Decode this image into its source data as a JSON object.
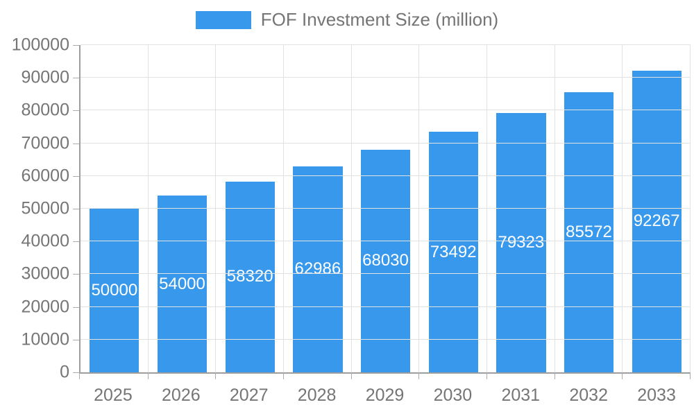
{
  "legend": {
    "label": "FOF Investment Size (million)"
  },
  "style": {
    "bar_color": "#3899EC",
    "grid_color": "#E2E2E2",
    "axis_color": "#9E9E9E",
    "tick_color": "#ABABAB",
    "axis_text_color": "#757575",
    "bar_label_color": "#FFFFFF"
  },
  "chart_data": {
    "type": "bar",
    "title": "",
    "categories": [
      "2025",
      "2026",
      "2027",
      "2028",
      "2029",
      "2030",
      "2031",
      "2032",
      "2033"
    ],
    "series": [
      {
        "name": "FOF Investment Size (million)",
        "values": [
          50000,
          54000,
          58320,
          62986,
          68030,
          73492,
          79323,
          85572,
          92267
        ]
      }
    ],
    "bar_value_labels": [
      "50000",
      "54000",
      "58320",
      "62986",
      "68030",
      "73492",
      "79323",
      "85572",
      "92267"
    ],
    "xlabel": "",
    "ylabel": "",
    "ylim": [
      0,
      100000
    ],
    "y_tick_step": 10000,
    "y_tick_labels": [
      "0",
      "10000",
      "20000",
      "30000",
      "40000",
      "50000",
      "60000",
      "70000",
      "80000",
      "90000",
      "100000"
    ],
    "grid": true,
    "legend_position": "top"
  }
}
